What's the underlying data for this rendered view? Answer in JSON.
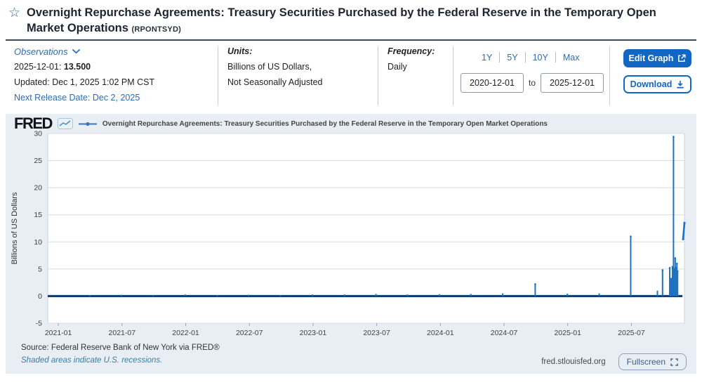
{
  "header": {
    "title": "Overnight Repurchase Agreements: Treasury Securities Purchased by the Federal Reserve in the Temporary Open Market Operations",
    "series_id": "(RPONTSYD)"
  },
  "meta": {
    "observations": {
      "label": "Observations",
      "date_label": "2025-12-01:",
      "value": "13.500",
      "updated": "Updated: Dec 1, 2025 1:02 PM CST",
      "next_release": "Next Release Date: Dec 2, 2025"
    },
    "units": {
      "label": "Units:",
      "line1": "Billions of US Dollars,",
      "line2": "Not Seasonally Adjusted"
    },
    "frequency": {
      "label": "Frequency:",
      "value": "Daily"
    },
    "range": {
      "presets": [
        "1Y",
        "5Y",
        "10Y",
        "Max"
      ],
      "start": "2020-12-01",
      "to_label": "to",
      "end": "2025-12-01"
    },
    "actions": {
      "edit_graph": "Edit Graph",
      "download": "Download"
    }
  },
  "chart": {
    "logo": "FRED",
    "legend": "Overnight Repurchase Agreements: Treasury Securities Purchased by the Federal Reserve in the Temporary Open Market Operations"
  },
  "footer": {
    "source": "Source: Federal Reserve Bank of New York via FRED®",
    "recessions_note": "Shaded areas indicate U.S. recessions.",
    "site": "fred.stlouisfed.org",
    "fullscreen_label": "Fullscreen"
  },
  "colors": {
    "accent_blue": "#2c6cb4",
    "button_blue": "#1266c4",
    "panel_bg": "#e8eef4",
    "line_dark": "#14406f",
    "spike_blue": "#1e72c4",
    "grid": "#d8dcdf",
    "recession_note": "#3a7ea6"
  },
  "chart_data": {
    "type": "line",
    "series_name": "Overnight Repurchase Agreements: Treasury Securities Purchased by the Federal Reserve in the Temporary Open Market Operations",
    "ylabel": "Billions of US Dollars",
    "ylim": [
      -5,
      30
    ],
    "yticks": [
      30,
      25,
      20,
      15,
      10,
      5,
      0,
      -5
    ],
    "xticks": [
      "2021-01",
      "2021-07",
      "2022-01",
      "2022-07",
      "2023-01",
      "2023-07",
      "2024-01",
      "2024-07",
      "2025-01",
      "2025-07"
    ],
    "x_start": "2020-12-01",
    "x_end": "2025-12-01",
    "grid": "horizontal",
    "legend_position": "top",
    "baseline_value": 0,
    "baseline_end": "2025-11-26",
    "last_observation": {
      "date": "2025-12-01",
      "value": 13.5
    },
    "points": [
      {
        "date": "2021-03-31",
        "value": 0.2
      },
      {
        "date": "2021-06-30",
        "value": 0.25
      },
      {
        "date": "2021-09-30",
        "value": 0.2
      },
      {
        "date": "2021-12-31",
        "value": 0.3
      },
      {
        "date": "2022-03-31",
        "value": 0.2
      },
      {
        "date": "2022-06-30",
        "value": 0.25
      },
      {
        "date": "2022-09-30",
        "value": 0.2
      },
      {
        "date": "2022-12-30",
        "value": 0.3
      },
      {
        "date": "2023-03-31",
        "value": 0.3
      },
      {
        "date": "2023-06-30",
        "value": 0.4
      },
      {
        "date": "2023-09-29",
        "value": 0.3
      },
      {
        "date": "2023-12-29",
        "value": 0.35
      },
      {
        "date": "2024-03-28",
        "value": 0.4
      },
      {
        "date": "2024-06-28",
        "value": 0.5
      },
      {
        "date": "2024-09-30",
        "value": 2.2
      },
      {
        "date": "2024-12-31",
        "value": 0.45
      },
      {
        "date": "2025-03-31",
        "value": 0.5
      },
      {
        "date": "2025-06-30",
        "value": 11.0
      },
      {
        "date": "2025-09-15",
        "value": 1.0
      },
      {
        "date": "2025-09-30",
        "value": 4.8
      },
      {
        "date": "2025-10-20",
        "value": 5.2
      },
      {
        "date": "2025-10-22",
        "value": 3.2
      },
      {
        "date": "2025-10-23",
        "value": 3.0
      },
      {
        "date": "2025-10-24",
        "value": 3.2
      },
      {
        "date": "2025-10-27",
        "value": 3.1
      },
      {
        "date": "2025-10-28",
        "value": 5.4
      },
      {
        "date": "2025-10-31",
        "value": 29.4
      },
      {
        "date": "2025-11-03",
        "value": 5.0
      },
      {
        "date": "2025-11-05",
        "value": 7.0
      },
      {
        "date": "2025-11-07",
        "value": 5.2
      },
      {
        "date": "2025-11-10",
        "value": 6.0
      },
      {
        "date": "2025-11-12",
        "value": 4.6
      },
      {
        "date": "2025-11-28",
        "value": 10.5,
        "floating": true
      },
      {
        "date": "2025-12-01",
        "value": 13.5,
        "floating": true
      }
    ]
  }
}
